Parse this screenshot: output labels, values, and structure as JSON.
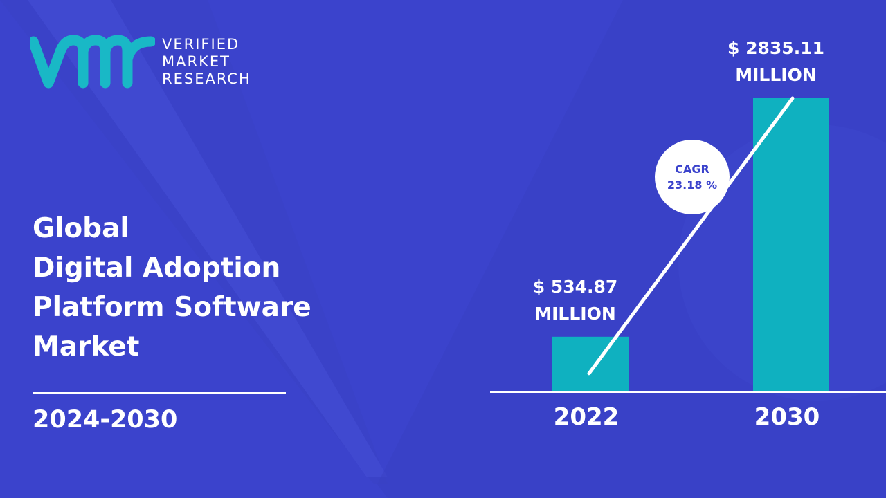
{
  "brand": {
    "lines": [
      "VERIFIED",
      "MARKET",
      "RESEARCH"
    ],
    "colors": {
      "logo": "#19b8c6",
      "text": "#ffffff"
    }
  },
  "title_lines": [
    "Global",
    "Digital Adoption",
    "Platform Software",
    "Market"
  ],
  "period": "2024-2030",
  "colors": {
    "background": "#3b43cc",
    "bar": "#0fb1c0",
    "text": "#ffffff",
    "cagr_text": "#3b43cc"
  },
  "chart_data": {
    "type": "bar",
    "categories": [
      "2022",
      "2030"
    ],
    "values": [
      534.87,
      2835.11
    ],
    "value_labels": [
      [
        "$ 534.87",
        "MILLION"
      ],
      [
        "$ 2835.11",
        "MILLION"
      ]
    ],
    "annotation": {
      "title": "CAGR",
      "value": "23.18 %"
    },
    "grid": false,
    "legend": "none"
  }
}
